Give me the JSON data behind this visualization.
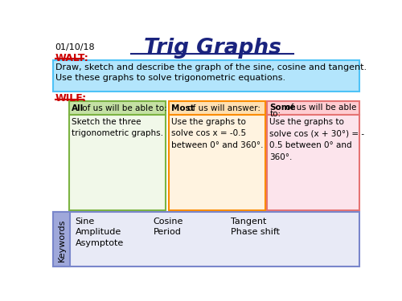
{
  "date": "01/10/18",
  "title": "Trig Graphs",
  "walt_label": "WALT:",
  "walt_text1": "Draw, sketch and describe the graph of the sine, cosine and tangent.",
  "walt_text2": "Use these graphs to solve trigonometric equations.",
  "wilf_label": "WILF:",
  "col1_header_bold": "All",
  "col1_header_rest": " of us will be able to:",
  "col2_header_bold": "Most",
  "col2_header_rest": " of us will answer:",
  "col3_header_bold": "Some",
  "col3_header_rest": " of us will be able to:",
  "col1_body": "Sketch the three\ntrigonometric graphs.",
  "col2_body": "Use the graphs to\nsolve cos x = -0.5\nbetween 0° and 360°.",
  "col3_body": "Use the graphs to\nsolve cos (x + 30°) = -\n0.5 between 0° and\n360°.",
  "keywords_label": "Keywords",
  "keywords": [
    [
      "Sine",
      "Cosine",
      "Tangent"
    ],
    [
      "Amplitude",
      "Period",
      "Phase shift"
    ],
    [
      "Asymptote",
      "",
      ""
    ]
  ],
  "title_color": "#1a237e",
  "red_color": "#cc0000",
  "walt_bg": "#b3e5fc",
  "walt_border": "#4fc3f7",
  "col1_header_bg": "#c5e1a5",
  "col1_header_border": "#7cb342",
  "col1_body_bg": "#f1f8e9",
  "col1_body_border": "#7cb342",
  "col2_header_bg": "#ffe0b2",
  "col2_header_border": "#fb8c00",
  "col2_body_bg": "#fff3e0",
  "col2_body_border": "#fb8c00",
  "col3_header_bg": "#ffcdd2",
  "col3_header_border": "#e57373",
  "col3_body_bg": "#fce4ec",
  "col3_body_border": "#e57373",
  "keywords_bg": "#e8eaf6",
  "keywords_border": "#7986cb",
  "keywords_label_bg": "#9fa8da",
  "background_color": "#ffffff"
}
